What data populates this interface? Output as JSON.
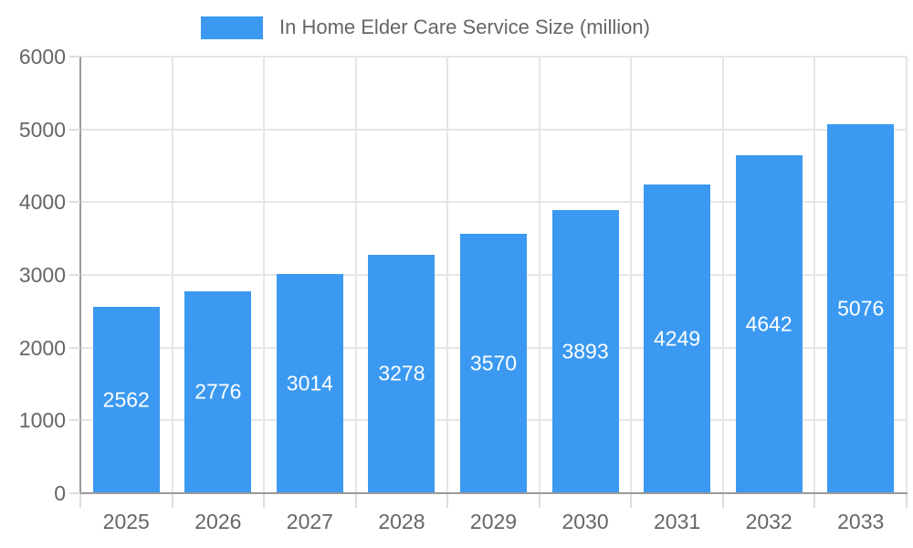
{
  "legend": {
    "label": "In Home Elder Care Service Size (million)"
  },
  "colors": {
    "bar": "#3b99f1",
    "bar_label": "#ffffff",
    "axis_text": "#666666",
    "grid": "#e6e6e6",
    "tick": "#dddddd",
    "axis_line": "#999999",
    "background": "#ffffff"
  },
  "chart_data": {
    "type": "bar",
    "title": "In Home Elder Care Service Size (million)",
    "categories": [
      "2025",
      "2026",
      "2027",
      "2028",
      "2029",
      "2030",
      "2031",
      "2032",
      "2033"
    ],
    "series": [
      {
        "name": "In Home Elder Care Service Size (million)",
        "values": [
          2562,
          2776,
          3014,
          3278,
          3570,
          3893,
          4249,
          4642,
          5076
        ]
      }
    ],
    "xlabel": "",
    "ylabel": "",
    "ylim": [
      0,
      6000
    ],
    "yticks": [
      0,
      1000,
      2000,
      3000,
      4000,
      5000,
      6000
    ],
    "grid": true,
    "legend_position": "top-center",
    "bar_value_labels": "inside-center"
  }
}
